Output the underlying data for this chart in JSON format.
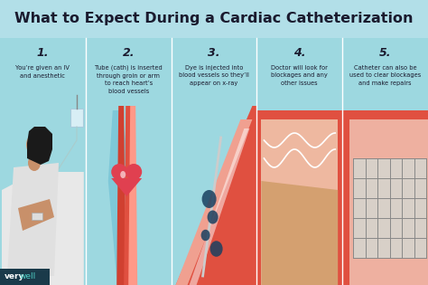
{
  "title": "What to Expect During a Cardiac Catheterization",
  "title_fontsize": 11.5,
  "title_color": "#1a1a2e",
  "bg_color": "#9dd8e0",
  "title_bg": "#b8e8f0",
  "steps": [
    "1.",
    "2.",
    "3.",
    "4.",
    "5."
  ],
  "step_texts": [
    "You’re given an IV\nand anesthetic",
    "Tube (cath) is inserted\nthrough groin or arm\nto reach heart’s\nblood vessels",
    "Dye is injected into\nblood vessels so they’ll\nappear on x-ray",
    "Doctor will look for\nblockages and any\nother issues",
    "Catheter can also be\nused to clear blockages\nand make repairs"
  ],
  "panel_colors": [
    "#9dd8e0",
    "#9dd8e0",
    "#9dd8e0",
    "#9dd8e0",
    "#9dd8e0"
  ],
  "num_steps": 5,
  "fig_width": 4.74,
  "fig_height": 3.15,
  "footer_bg": "#1a3a4a",
  "footer_text_very": "very",
  "footer_text_well": "well",
  "footer_very_color": "#ffffff",
  "footer_well_color": "#4ecdc4",
  "skin_color": "#c8906a",
  "hair_color": "#1a1a1a",
  "body_color": "#e8e8e8",
  "iv_bag_color": "#d8eef5",
  "vessel_red": "#e05040",
  "vessel_pink": "#f0a090",
  "vessel_outer": "#d04030",
  "stent_color": "#c8c8c8",
  "blockage_color": "#d4a070",
  "wavy_color": "#ffffff",
  "catheter_color": "#2a5870",
  "dye_color": "#1a4060"
}
